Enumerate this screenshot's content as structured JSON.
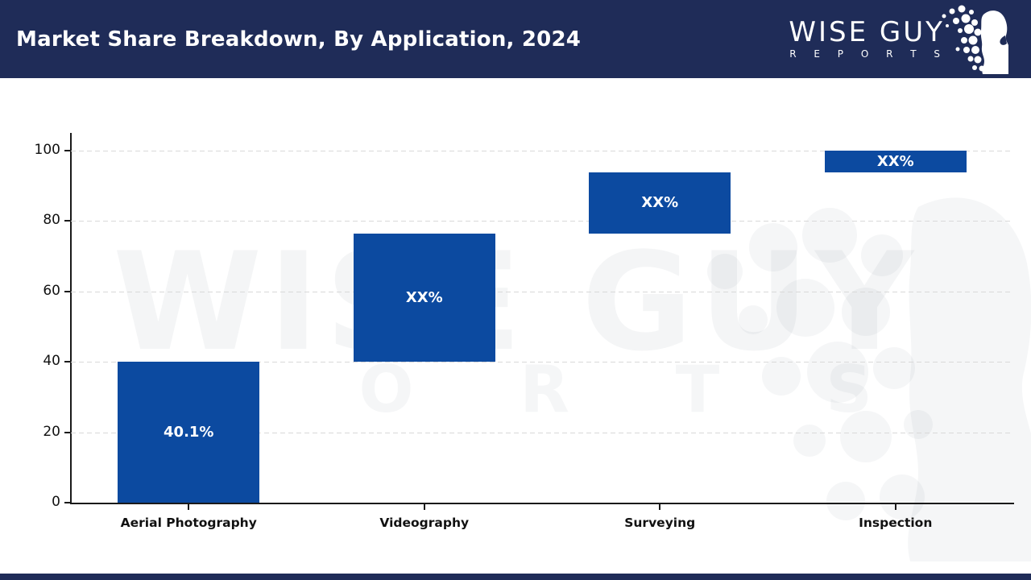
{
  "header": {
    "title": "Market Share Breakdown, By Application, 2024",
    "bg_color": "#1f2c58",
    "logo": {
      "line1": "WISE GUY",
      "line2": "R E P O R T S",
      "glyph": "dotted-head-profile-icon"
    }
  },
  "watermark": {
    "line1": "WISE GUY",
    "line2": "P O R T S"
  },
  "chart_data": {
    "type": "bar",
    "subtype": "waterfall",
    "title": "Market Share Breakdown, By Application, 2024",
    "categories": [
      "Aerial Photography",
      "Videography",
      "Surveying",
      "Inspection"
    ],
    "segments": [
      {
        "category": "Aerial Photography",
        "start": 0,
        "end": 40.1,
        "label": "40.1%"
      },
      {
        "category": "Videography",
        "start": 40.1,
        "end": 76.5,
        "label": "XX%"
      },
      {
        "category": "Surveying",
        "start": 76.5,
        "end": 93.9,
        "label": "XX%"
      },
      {
        "category": "Inspection",
        "start": 93.9,
        "end": 100,
        "label": "XX%"
      }
    ],
    "ylim": [
      0,
      100
    ],
    "yticks": [
      0,
      20,
      40,
      60,
      80,
      100
    ],
    "bar_color": "#0c4aa0",
    "axis_color": "#1a1a1a",
    "grid": "horizontal-dashed",
    "gridline_color": "#d9d9d9",
    "legend": "none",
    "xlabel": "",
    "ylabel": ""
  }
}
